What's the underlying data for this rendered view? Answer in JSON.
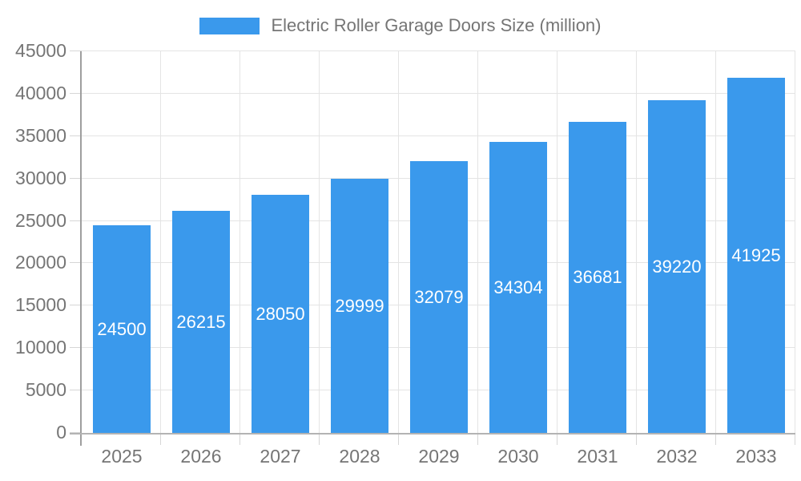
{
  "chart_data": {
    "type": "bar",
    "title": "Electric Roller Garage Doors Size (million)",
    "legend": [
      "Electric Roller Garage Doors Size (million)"
    ],
    "legend_position": "top-center",
    "categories": [
      "2025",
      "2026",
      "2027",
      "2028",
      "2029",
      "2030",
      "2031",
      "2032",
      "2033"
    ],
    "values": [
      24500,
      26215,
      28050,
      29999,
      32079,
      34304,
      36681,
      39220,
      41925
    ],
    "xlabel": "",
    "ylabel": "",
    "ylim": [
      0,
      45000
    ],
    "ytick_step": 5000,
    "grid": true,
    "value_labels": "inside-center",
    "colors": {
      "bar": "#3A99EC",
      "grid": "#E4E4E4",
      "tick": "#D6D6D6",
      "y_axis": "#9E9E9E",
      "x_axis": "#B3B3B3",
      "text": "#757575",
      "value_label": "#FFFFFF"
    }
  }
}
